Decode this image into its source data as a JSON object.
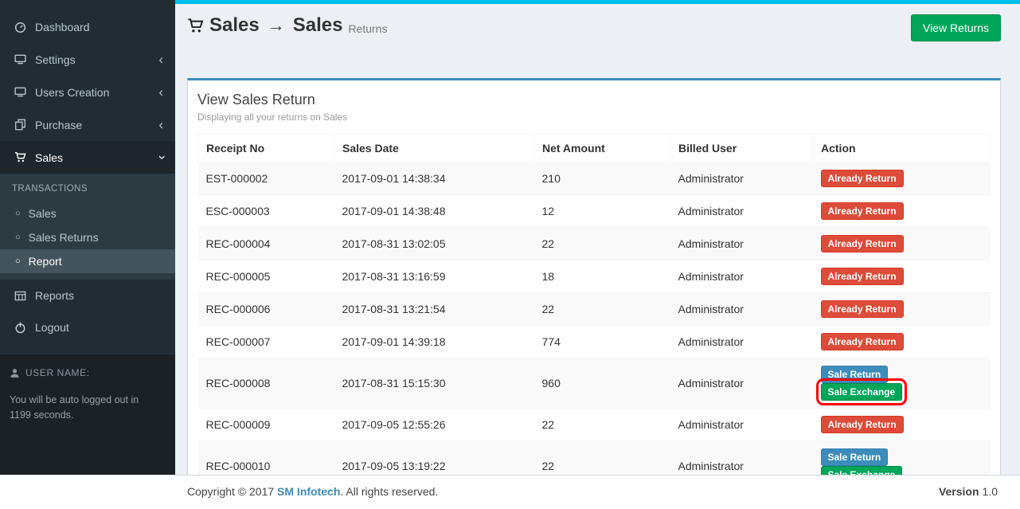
{
  "colors": {
    "accent_blue": "#3c8dbc",
    "success_green": "#00a65a",
    "danger_red": "#dd4b39",
    "info_bar_cyan": "#00c0ef",
    "sidebar_bg": "#222d32",
    "sidebar_active_bg": "#1e282c",
    "content_bg": "#ecf0f5",
    "annotation_red": "#ff0000"
  },
  "icons": {
    "chevron_left": "‹",
    "chevron_down": "‹",
    "circle_o": "○",
    "arrow_right": "→"
  },
  "sidebar": {
    "menu": [
      {
        "label": "Dashboard"
      },
      {
        "label": "Settings",
        "collapsed": true
      },
      {
        "label": "Users Creation",
        "collapsed": true
      },
      {
        "label": "Purchase",
        "collapsed": true
      },
      {
        "label": "Sales",
        "active": true,
        "expanded": true
      }
    ],
    "section_header": "TRANSACTIONS",
    "submenu": [
      {
        "label": "Sales"
      },
      {
        "label": "Sales Returns"
      },
      {
        "label": "Report"
      }
    ],
    "menu_bottom": [
      {
        "label": "Reports"
      },
      {
        "label": "Logout"
      }
    ],
    "user_label": "USER NAME:",
    "auto_logout_notice": "You will be auto logged out in 1199 seconds."
  },
  "header": {
    "title_main": "Sales",
    "title_section": "Sales",
    "title_sub": "Returns",
    "view_returns_button": "View Returns"
  },
  "panel": {
    "title": "View Sales Return",
    "subtitle": "Displaying all your returns on Sales"
  },
  "table": {
    "headers": [
      "Receipt No",
      "Sales Date",
      "Net Amount",
      "Billed User",
      "Action"
    ],
    "rows": [
      {
        "receipt_no": "EST-000002",
        "sales_date": "2017-09-01 14:38:34",
        "net_amount": "210",
        "billed_user": "Administrator",
        "actions": [
          {
            "label": "Already Return",
            "style": "danger"
          }
        ]
      },
      {
        "receipt_no": "ESC-000003",
        "sales_date": "2017-09-01 14:38:48",
        "net_amount": "12",
        "billed_user": "Administrator",
        "actions": [
          {
            "label": "Already Return",
            "style": "danger"
          }
        ]
      },
      {
        "receipt_no": "REC-000004",
        "sales_date": "2017-08-31 13:02:05",
        "net_amount": "22",
        "billed_user": "Administrator",
        "actions": [
          {
            "label": "Already Return",
            "style": "danger"
          }
        ]
      },
      {
        "receipt_no": "REC-000005",
        "sales_date": "2017-08-31 13:16:59",
        "net_amount": "18",
        "billed_user": "Administrator",
        "actions": [
          {
            "label": "Already Return",
            "style": "danger"
          }
        ]
      },
      {
        "receipt_no": "REC-000006",
        "sales_date": "2017-08-31 13:21:54",
        "net_amount": "22",
        "billed_user": "Administrator",
        "actions": [
          {
            "label": "Already Return",
            "style": "danger"
          }
        ]
      },
      {
        "receipt_no": "REC-000007",
        "sales_date": "2017-09-01 14:39:18",
        "net_amount": "774",
        "billed_user": "Administrator",
        "actions": [
          {
            "label": "Already Return",
            "style": "danger"
          }
        ]
      },
      {
        "receipt_no": "REC-000008",
        "sales_date": "2017-08-31 15:15:30",
        "net_amount": "960",
        "billed_user": "Administrator",
        "actions": [
          {
            "label": "Sale Return",
            "style": "primary"
          },
          {
            "label": "Sale Exchange",
            "style": "success",
            "highlighted": true
          }
        ]
      },
      {
        "receipt_no": "REC-000009",
        "sales_date": "2017-09-05 12:55:26",
        "net_amount": "22",
        "billed_user": "Administrator",
        "actions": [
          {
            "label": "Already Return",
            "style": "danger"
          }
        ]
      },
      {
        "receipt_no": "REC-000010",
        "sales_date": "2017-09-05 13:19:22",
        "net_amount": "22",
        "billed_user": "Administrator",
        "actions": [
          {
            "label": "Sale Return",
            "style": "primary"
          },
          {
            "label": "Sale Exchange",
            "style": "success"
          }
        ]
      }
    ]
  },
  "footer": {
    "copyright_prefix": "Copyright © 2017 ",
    "company": "SM Infotech",
    "copyright_suffix": ". All rights reserved.",
    "version_label": "Version",
    "version_value": "1.0"
  }
}
